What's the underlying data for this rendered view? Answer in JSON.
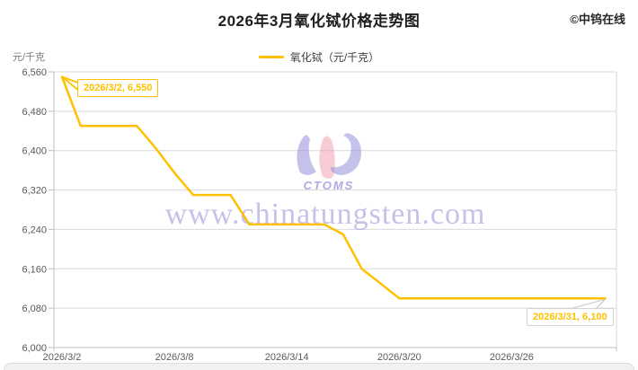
{
  "header": {
    "title": "2026年3月氧化铽价格走势图",
    "copyright": "©中钨在线"
  },
  "legend": {
    "label": "氧化铽（元/千克）"
  },
  "y_axis": {
    "title": "元/千克",
    "ticks": [
      "6,560",
      "6,480",
      "6,400",
      "6,320",
      "6,240",
      "6,160",
      "6,080",
      "6,000"
    ]
  },
  "x_axis": {
    "ticks": [
      "2026/3/2",
      "2026/3/8",
      "2026/3/14",
      "2026/3/20",
      "2026/3/26"
    ]
  },
  "annotations": {
    "start": "2026/3/2, 6,550",
    "end": "2026/3/31, 6,100"
  },
  "watermark": {
    "text": "www.chinatungsten.com",
    "logo_text": "CTOMS"
  },
  "colors": {
    "line": "#FFC000",
    "gridline": "#D9D9D9",
    "axis": "#BFBFBF",
    "annotation_text": "#FFC000",
    "watermark": "#8d87d6"
  },
  "chart_data": {
    "type": "line",
    "title": "2026年3月氧化铽价格走势图",
    "xlabel": "",
    "ylabel": "元/千克",
    "ylim": [
      6000,
      6560
    ],
    "y_step": 80,
    "grid": true,
    "legend_position": "top",
    "x": [
      "2026/3/2",
      "2026/3/3",
      "2026/3/4",
      "2026/3/5",
      "2026/3/6",
      "2026/3/7",
      "2026/3/8",
      "2026/3/9",
      "2026/3/10",
      "2026/3/11",
      "2026/3/12",
      "2026/3/13",
      "2026/3/14",
      "2026/3/15",
      "2026/3/16",
      "2026/3/17",
      "2026/3/18",
      "2026/3/19",
      "2026/3/20",
      "2026/3/21",
      "2026/3/22",
      "2026/3/23",
      "2026/3/24",
      "2026/3/25",
      "2026/3/26",
      "2026/3/27",
      "2026/3/28",
      "2026/3/29",
      "2026/3/30",
      "2026/3/31"
    ],
    "series": [
      {
        "name": "氧化铽（元/千克）",
        "color": "#FFC000",
        "values": [
          6550,
          6450,
          6450,
          6450,
          6450,
          6405,
          6355,
          6310,
          6310,
          6310,
          6250,
          6250,
          6250,
          6250,
          6250,
          6230,
          6160,
          6130,
          6100,
          6100,
          6100,
          6100,
          6100,
          6100,
          6100,
          6100,
          6100,
          6100,
          6100,
          6100
        ]
      }
    ],
    "point_labels": [
      {
        "x": "2026/3/2",
        "value": 6550,
        "label": "2026/3/2, 6,550"
      },
      {
        "x": "2026/3/31",
        "value": 6100,
        "label": "2026/3/31, 6,100"
      }
    ]
  }
}
